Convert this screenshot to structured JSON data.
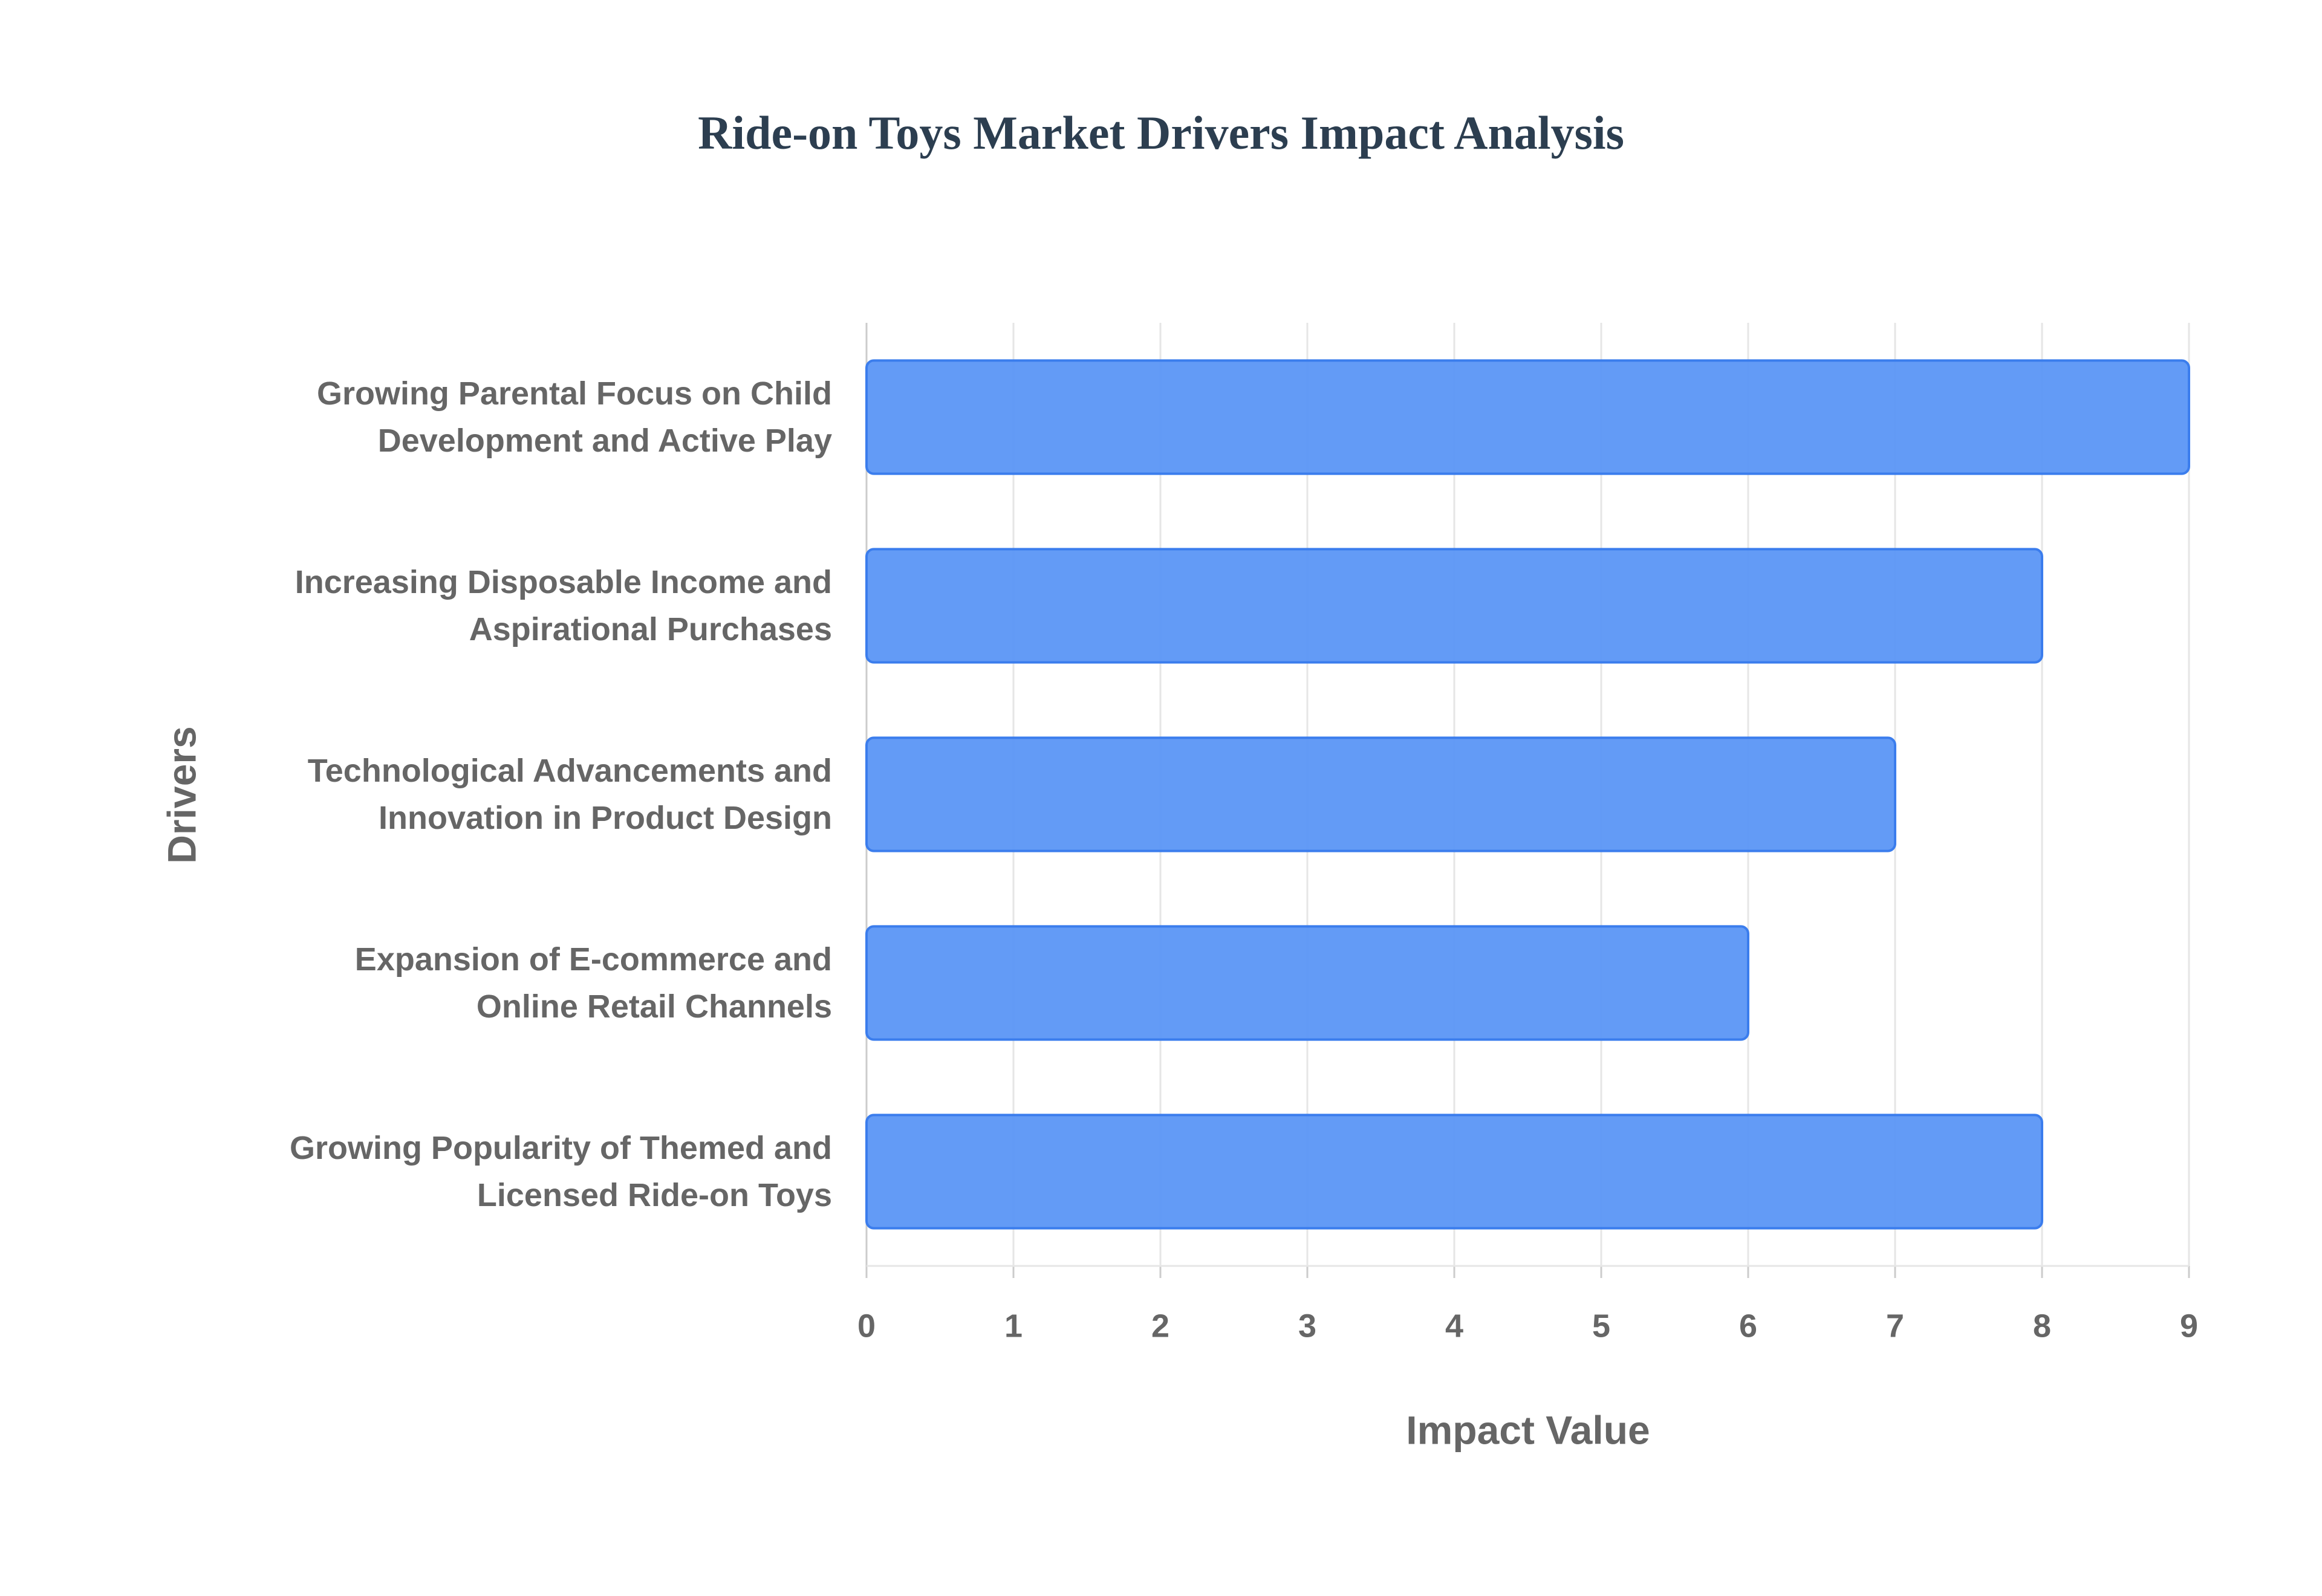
{
  "chart_data": {
    "type": "bar",
    "orientation": "horizontal",
    "title": "Ride-on Toys Market Drivers Impact Analysis",
    "xlabel": "Impact Value",
    "ylabel": "Drivers",
    "categories": [
      "Growing Parental Focus on Child Development and Active Play",
      "Increasing Disposable Income and Aspirational Purchases",
      "Technological Advancements and Innovation in Product Design",
      "Expansion of E-commerce and Online Retail Channels",
      "Growing Popularity of Themed and Licensed Ride-on Toys"
    ],
    "values": [
      9,
      8,
      7,
      6,
      8
    ],
    "color": "#5b96f5",
    "xlim": [
      0,
      9
    ],
    "xticks": [
      0,
      1,
      2,
      3,
      4,
      5,
      6,
      7,
      8,
      9
    ],
    "grid": true
  }
}
